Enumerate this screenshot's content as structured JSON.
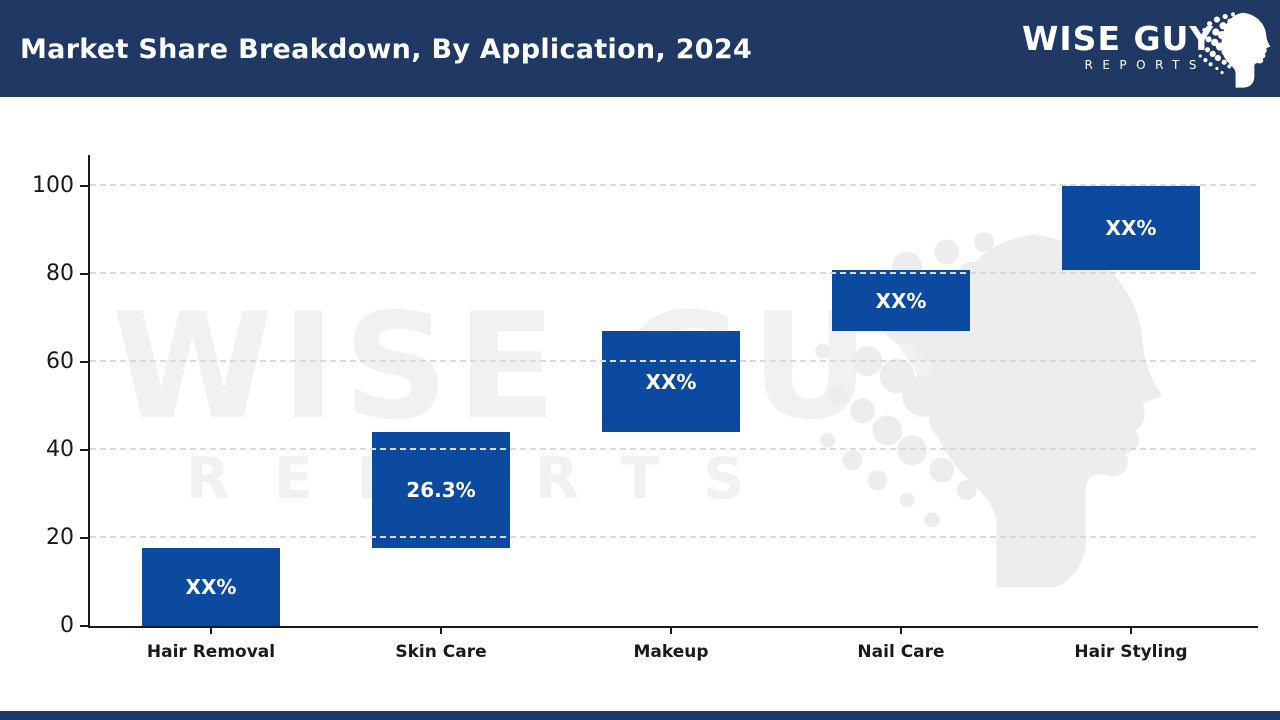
{
  "header": {
    "title": "Market Share Breakdown, By Application, 2024",
    "logo": {
      "line1": "WISE GUY",
      "line2": "REPORTS"
    }
  },
  "watermark": {
    "line1": "WISE GUY",
    "line2": "REPORTS"
  },
  "colors": {
    "header_bg": "#1f3864",
    "footer_bg": "#1f3864",
    "bar": "#0b4a9e",
    "bar_label": "#ffffff",
    "axis": "#1a1a1a",
    "grid": "#d9d9d9",
    "watermark": "#f1f1f1"
  },
  "chart_data": {
    "type": "bar",
    "subtype": "floating-waterfall",
    "title": "Market Share Breakdown, By Application, 2024",
    "categories": [
      "Hair Removal",
      "Skin Care",
      "Makeup",
      "Nail Care",
      "Hair Styling"
    ],
    "segments": [
      {
        "category": "Hair Removal",
        "start": 0,
        "end": 17.7,
        "label": "XX%"
      },
      {
        "category": "Skin Care",
        "start": 17.7,
        "end": 44.0,
        "label": "26.3%"
      },
      {
        "category": "Makeup",
        "start": 44.0,
        "end": 67.1,
        "label": "XX%"
      },
      {
        "category": "Nail Care",
        "start": 67.1,
        "end": 80.8,
        "label": "XX%"
      },
      {
        "category": "Hair Styling",
        "start": 80.8,
        "end": 100,
        "label": "XX%"
      }
    ],
    "xlabel": "",
    "ylabel": "",
    "ylim": [
      0,
      100
    ],
    "yticks": [
      0,
      20,
      40,
      60,
      80,
      100
    ],
    "grid": "horizontal-dashed",
    "legend": "none"
  }
}
